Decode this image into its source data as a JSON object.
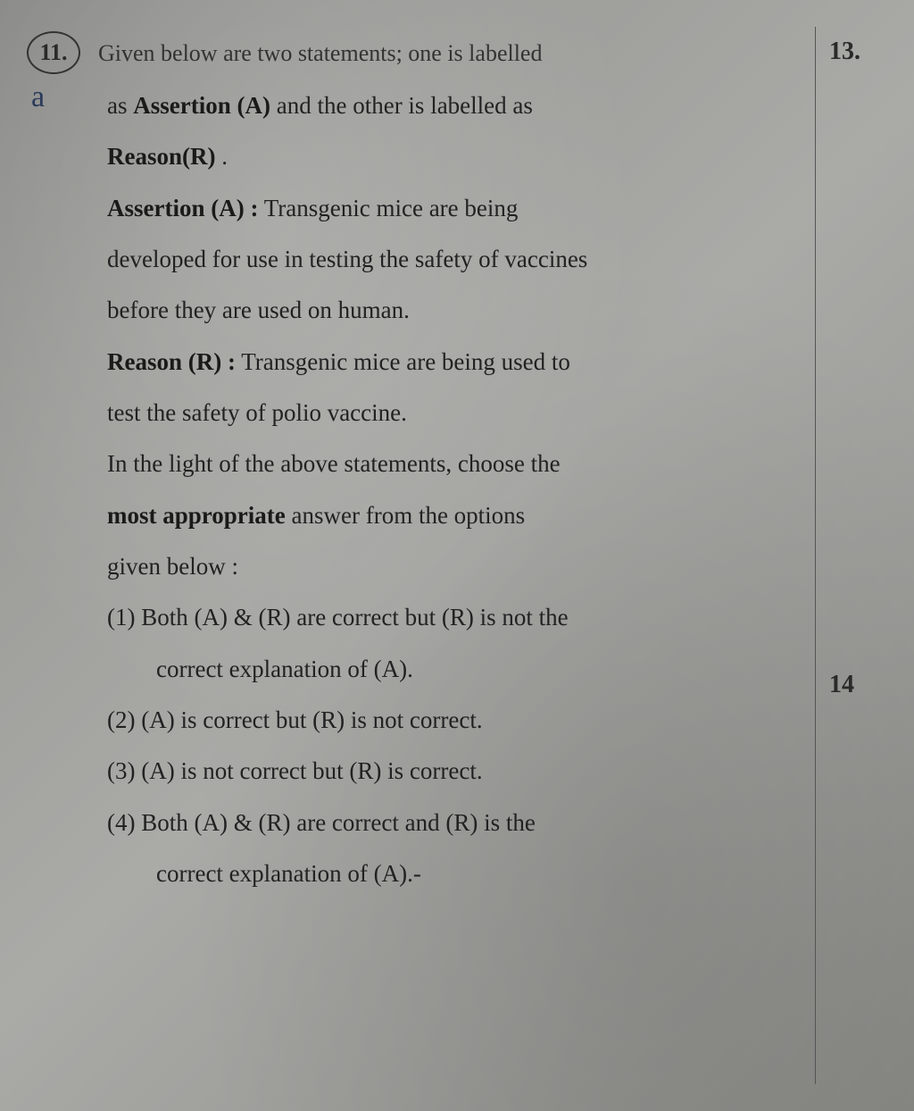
{
  "question": {
    "number": "11.",
    "handwritten_annotation": "a",
    "intro_line1": "Given below are two statements; one is labelled",
    "intro_line2_prefix": "as ",
    "intro_line2_bold": "Assertion (A)",
    "intro_line2_suffix": " and the other is labelled as",
    "reason_label": "Reason(R)",
    "reason_label_suffix": " .",
    "assertion_label": "Assertion (A) :",
    "assertion_line1": " Transgenic mice are being",
    "assertion_line2": "developed for use in testing the safety of vaccines",
    "assertion_line3": "before they are used on human.",
    "reason_r_label": "Reason (R) :",
    "reason_r_line1": " Transgenic mice are being used to",
    "reason_r_line2": "test the safety of polio vaccine.",
    "instruction_line1": "In the light of the above statements, choose the",
    "instruction_bold": "most appropriate",
    "instruction_line2_suffix": " answer from the options",
    "instruction_line3": "given below :"
  },
  "options": {
    "opt1_line1": "(1) Both (A) & (R) are correct but (R) is not the",
    "opt1_line2": "correct explanation of (A).",
    "opt2": "(2) (A) is correct but (R) is not correct.",
    "opt3": "(3) (A) is not correct but (R) is correct.",
    "opt4_line1": "(4) Both (A) & (R) are correct and (R) is the",
    "opt4_line2": "correct explanation of (A).-"
  },
  "side": {
    "q13": "13.",
    "q14": "14"
  },
  "colors": {
    "text_primary": "#1a1a18",
    "text_secondary": "#333",
    "circle_border": "#333",
    "divider": "#555",
    "handwritten": "#2a3a5a",
    "bg_gradient_start": "#8a8a88",
    "bg_gradient_end": "#888884"
  },
  "typography": {
    "body_fontsize": 27,
    "number_fontsize": 26,
    "side_fontsize": 28,
    "line_height": 2.05,
    "font_family": "Georgia, serif"
  }
}
